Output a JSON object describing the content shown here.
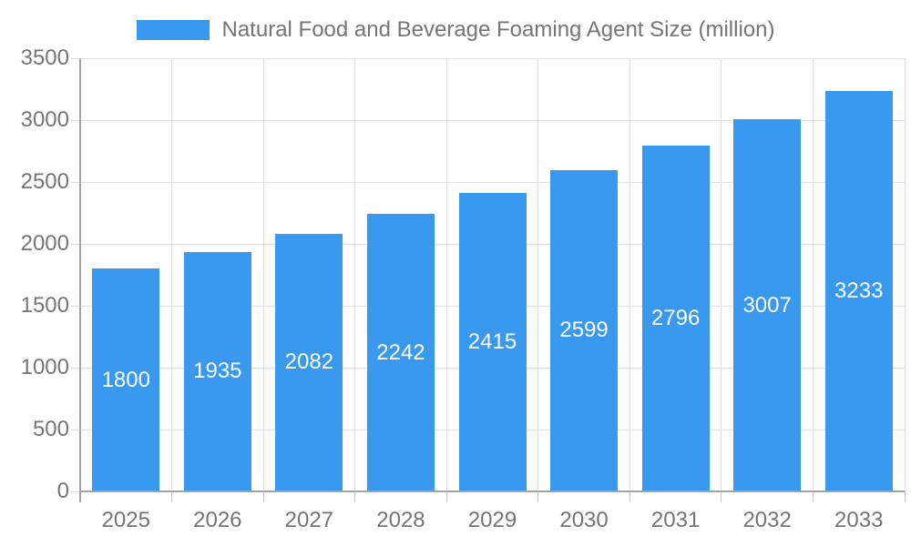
{
  "legend": {
    "label": "Natural Food and Beverage Foaming Agent Size (million)"
  },
  "colors": {
    "bar": "#3999ee",
    "grid": "#e0e0e0",
    "axis": "#a3a3a3",
    "tick_x": "#c5c5c5",
    "tick_y": "#e0e0e0",
    "text": "#757575",
    "bar_label": "#ffffff",
    "background": "#ffffff"
  },
  "chart_data": {
    "type": "bar",
    "title": "Natural Food and Beverage Foaming Agent Size (million)",
    "categories": [
      "2025",
      "2026",
      "2027",
      "2028",
      "2029",
      "2030",
      "2031",
      "2032",
      "2033"
    ],
    "values": [
      1800,
      1935,
      2082,
      2242,
      2415,
      2599,
      2796,
      3007,
      3233
    ],
    "xlabel": "",
    "ylabel": "",
    "ylim": [
      0,
      3500
    ],
    "yticks": [
      0,
      500,
      1000,
      1500,
      2000,
      2500,
      3000,
      3500
    ],
    "grid": true,
    "legend_position": "top",
    "value_labels": "inside-center"
  }
}
